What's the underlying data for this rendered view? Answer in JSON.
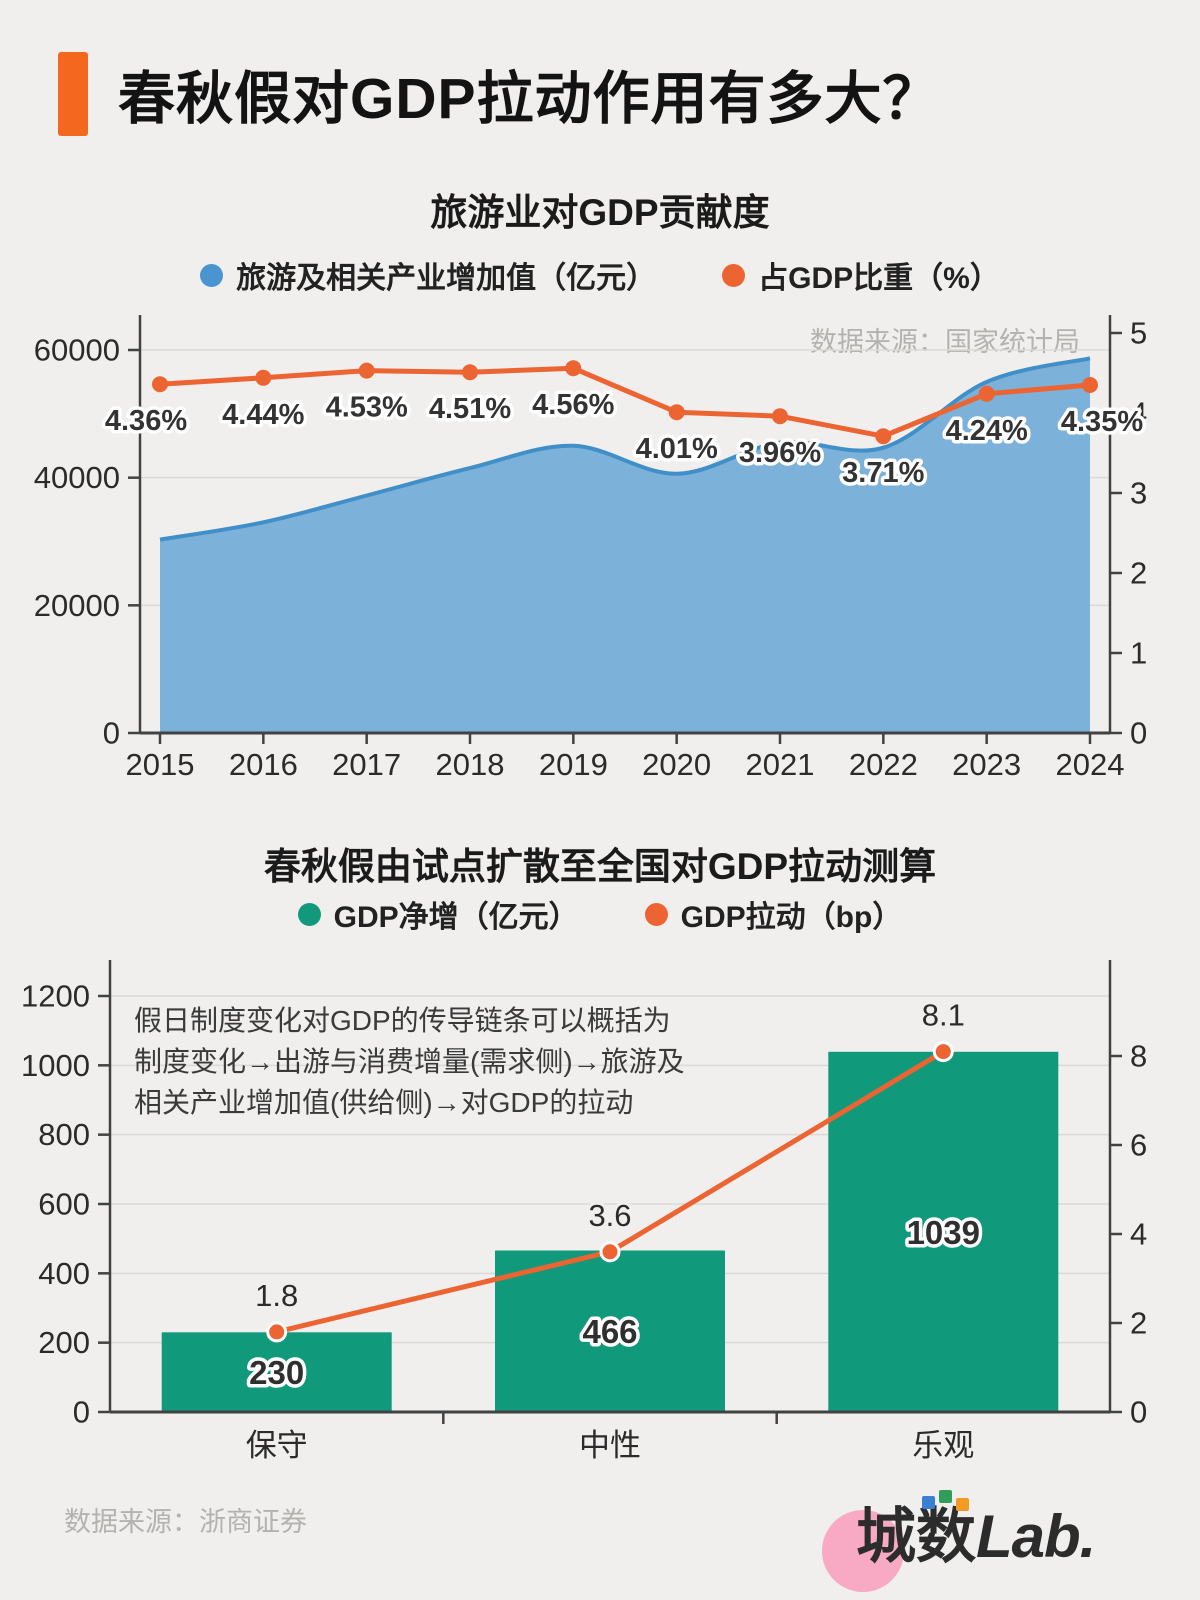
{
  "header": {
    "title": "春秋假对GDP拉动作用有多大？"
  },
  "colors": {
    "accent": "#f4671f",
    "blue_fill": "#7cb1da",
    "blue_line": "#418fc8",
    "blue_dot": "#4a94d0",
    "orange": "#ed6433",
    "green": "#10997a",
    "pink": "#f8aac5",
    "grid": "#dcdad7",
    "axis": "#424242"
  },
  "chart1": {
    "title": "旅游业对GDP贡献度",
    "source": "数据来源：国家统计局",
    "legend": [
      {
        "label": "旅游及相关产业增加值（亿元）",
        "color": "#4a94d0"
      },
      {
        "label": "占GDP比重（%）",
        "color": "#ed6433"
      }
    ]
  },
  "chart2": {
    "title": "春秋假由试点扩散至全国对GDP拉动测算",
    "legend": [
      {
        "label": "GDP净增（亿元）",
        "color": "#10997a"
      },
      {
        "label": "GDP拉动（bp）",
        "color": "#ed6433"
      }
    ],
    "annotation": "假日制度变化对GDP的传导链条可以概括为\n制度变化→出游与消费增量(需求侧)→旅游及\n相关产业增加值(供给侧)→对GDP的拉动"
  },
  "chart_data": [
    {
      "type": "area",
      "title": "旅游业对GDP贡献度",
      "x": [
        "2015",
        "2016",
        "2017",
        "2018",
        "2019",
        "2020",
        "2021",
        "2022",
        "2023",
        "2024"
      ],
      "series": [
        {
          "name": "旅游及相关产业增加值（亿元）",
          "type": "area",
          "axis": "left",
          "values": [
            30300,
            33000,
            37200,
            41500,
            45000,
            40600,
            45500,
            44700,
            55000,
            58700
          ]
        },
        {
          "name": "占GDP比重（%）",
          "type": "line",
          "axis": "right",
          "values": [
            4.36,
            4.44,
            4.53,
            4.51,
            4.56,
            4.01,
            3.96,
            3.71,
            4.24,
            4.35
          ],
          "labels": [
            "4.36%",
            "4.44%",
            "4.53%",
            "4.51%",
            "4.56%",
            "4.01%",
            "3.96%",
            "3.71%",
            "4.24%",
            "4.35%"
          ]
        }
      ],
      "left_axis": {
        "ticks": [
          0,
          20000,
          40000,
          60000
        ],
        "max": 60000,
        "ylim": [
          0,
          60000
        ]
      },
      "right_axis": {
        "ticks": [
          0,
          1,
          2,
          3,
          4,
          5
        ],
        "max": 5,
        "ylim": [
          0,
          5
        ]
      },
      "grid": true,
      "legend_position": "top",
      "source": "数据来源：国家统计局"
    },
    {
      "type": "bar",
      "title": "春秋假由试点扩散至全国对GDP拉动测算",
      "categories": [
        "保守",
        "中性",
        "乐观"
      ],
      "series": [
        {
          "name": "GDP净增（亿元）",
          "type": "bar",
          "axis": "left",
          "values": [
            230,
            466,
            1039
          ],
          "labels": [
            "230",
            "466",
            "1039"
          ]
        },
        {
          "name": "GDP拉动（bp）",
          "type": "line",
          "axis": "right",
          "values": [
            1.8,
            3.6,
            8.1
          ],
          "labels": [
            "1.8",
            "3.6",
            "8.1"
          ]
        }
      ],
      "left_axis": {
        "ticks": [
          0,
          200,
          400,
          600,
          800,
          1000,
          1200
        ],
        "max": 1200,
        "ylim": [
          0,
          1200
        ]
      },
      "right_axis": {
        "ticks": [
          0,
          2,
          4,
          6,
          8
        ],
        "max": 9,
        "ylim": [
          0,
          9
        ]
      },
      "grid": true,
      "legend_position": "top"
    }
  ],
  "footer": {
    "source": "数据来源：浙商证券",
    "logo": {
      "cn": "城数",
      "en": "Lab."
    }
  }
}
